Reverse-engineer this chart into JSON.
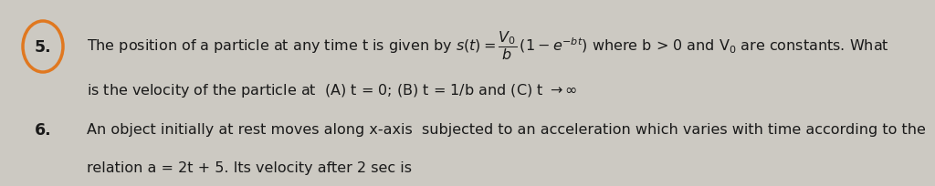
{
  "background_color": "#ccc9c2",
  "fig_width": 10.24,
  "fig_height": 2.05,
  "dpi": 100,
  "text_color": "#1a1a1a",
  "circle_color": "#e07820",
  "font_size": 11.5,
  "q5_label": "5.",
  "q5_line1": "The position of a particle at any time t is given by $s(t)=\\dfrac{V_0}{b}\\,(1-e^{-bt})$ where b > 0 and V$_0$ are constants. What",
  "q5_line2": "is the velocity of the particle at  (A) t = 0; (B) t = 1/b and (C) t $\\rightarrow\\infty$",
  "q6_label": "6.",
  "q6_line1": "An object initially at rest moves along x-axis  subjected to an acceleration which varies with time according to the",
  "q6_line2": "relation a = 2t + 5. Its velocity after 2 sec is"
}
